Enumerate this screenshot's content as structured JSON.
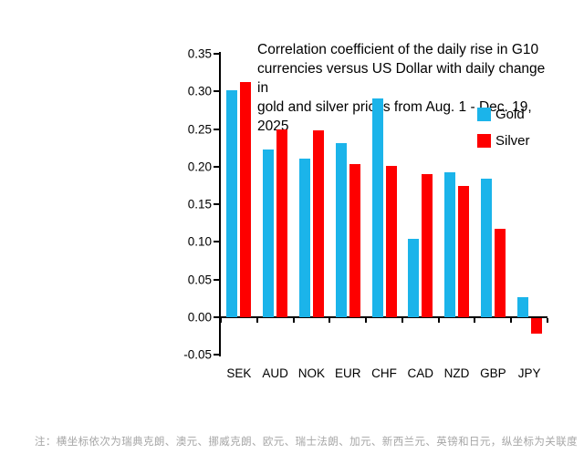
{
  "title_lines": [
    "Correlation coefficient of the daily rise in G10",
    "currencies versus US Dollar with daily change in",
    "gold and silver prices from Aug. 1 - Dec. 19, 2025"
  ],
  "legend": [
    {
      "label": "Gold",
      "color": "#1bb4ea"
    },
    {
      "label": "Silver",
      "color": "#fe0000"
    }
  ],
  "footnote": "注：横坐标依次为瑞典克朗、澳元、挪威克朗、欧元、瑞士法朗、加元、新西兰元、英镑和日元，纵坐标为关联度",
  "chart_data": {
    "type": "bar",
    "title": "Correlation coefficient of the daily rise in G10 currencies versus US Dollar with daily change in gold and silver prices from Aug. 1 - Dec. 19, 2025",
    "categories": [
      "SEK",
      "AUD",
      "NOK",
      "EUR",
      "CHF",
      "CAD",
      "NZD",
      "GBP",
      "JPY"
    ],
    "series": [
      {
        "name": "Gold",
        "color": "#1bb4ea",
        "values": [
          0.302,
          0.223,
          0.211,
          0.231,
          0.291,
          0.104,
          0.193,
          0.184,
          0.026
        ]
      },
      {
        "name": "Silver",
        "color": "#fe0000",
        "values": [
          0.312,
          0.249,
          0.248,
          0.203,
          0.201,
          0.19,
          0.174,
          0.117,
          -0.021
        ]
      }
    ],
    "ylim": [
      -0.05,
      0.35
    ],
    "ytick_labels": [
      "0.35",
      "0.30",
      "0.25",
      "0.20",
      "0.15",
      "0.10",
      "0.05",
      "0.00",
      "-0.05"
    ],
    "xlabel": "",
    "ylabel": "",
    "grid": false,
    "legend_position": "upper right"
  }
}
